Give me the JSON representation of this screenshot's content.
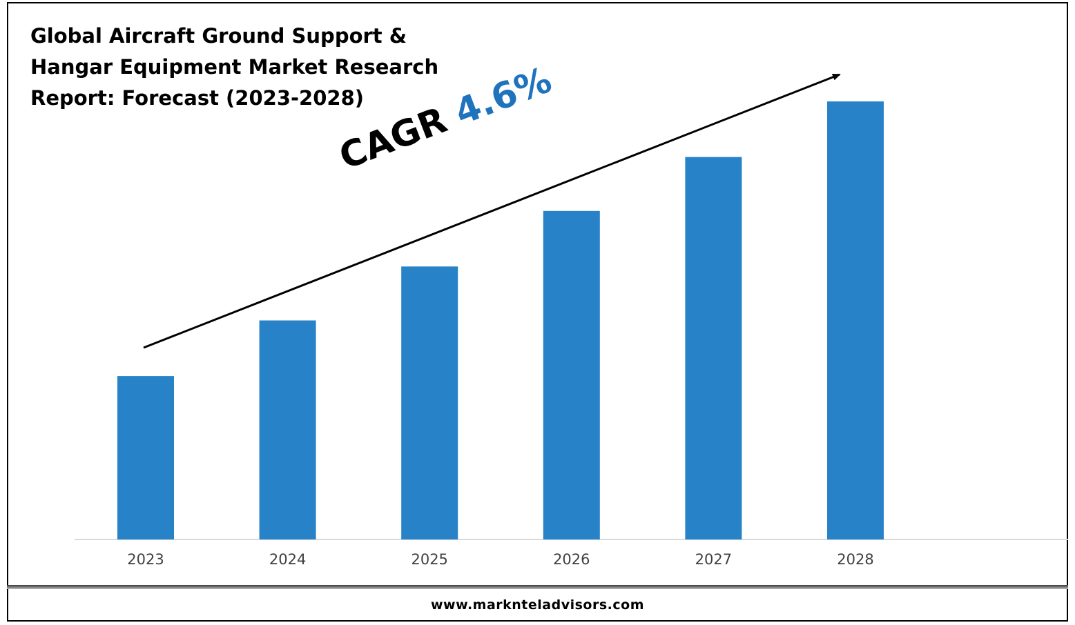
{
  "title": "Global Aircraft Ground Support & Hangar Equipment Market Research Report: Forecast (2023-2028)",
  "annotation": {
    "label": "CAGR",
    "value": "4.6%",
    "value_color": "#1f73bd"
  },
  "footer": {
    "url": "www.marknteladvisors.com"
  },
  "colors": {
    "bar": "#2782c8",
    "baseline": "#d9d9d9",
    "arrow": "#000000"
  },
  "chart_data": {
    "type": "bar",
    "title": "Global Aircraft Ground Support & Hangar Equipment Market Research Report: Forecast (2023-2028)",
    "categories": [
      "2023",
      "2024",
      "2025",
      "2026",
      "2027",
      "2028"
    ],
    "values": [
      1.0,
      1.34,
      1.67,
      2.01,
      2.34,
      2.68
    ],
    "ylim": [
      0,
      2.68
    ],
    "xlabel": "",
    "ylabel": "",
    "grid": false,
    "legend": "none",
    "trend_arrow": true
  }
}
